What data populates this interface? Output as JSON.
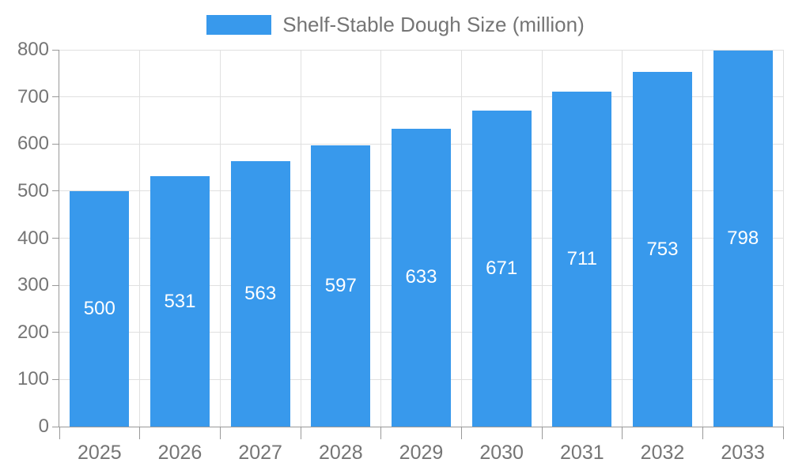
{
  "legend": {
    "label": "Shelf-Stable Dough Size (million)",
    "swatch_color": "#3899EC"
  },
  "chart_data": {
    "type": "bar",
    "title": "Shelf-Stable Dough Size (million)",
    "categories": [
      "2025",
      "2026",
      "2027",
      "2028",
      "2029",
      "2030",
      "2031",
      "2032",
      "2033"
    ],
    "values": [
      500,
      531,
      563,
      597,
      633,
      671,
      711,
      753,
      798
    ],
    "xlabel": "",
    "ylabel": "",
    "ylim": [
      0,
      800
    ],
    "yticks": [
      0,
      100,
      200,
      300,
      400,
      500,
      600,
      700,
      800
    ],
    "grid": true,
    "legend_position": "top",
    "colors": {
      "bar": "#3899EC",
      "bar_label": "#FFFFFF",
      "axis_text": "#757575",
      "axis_line": "#999999",
      "gridline": "#E0E0E0"
    }
  }
}
